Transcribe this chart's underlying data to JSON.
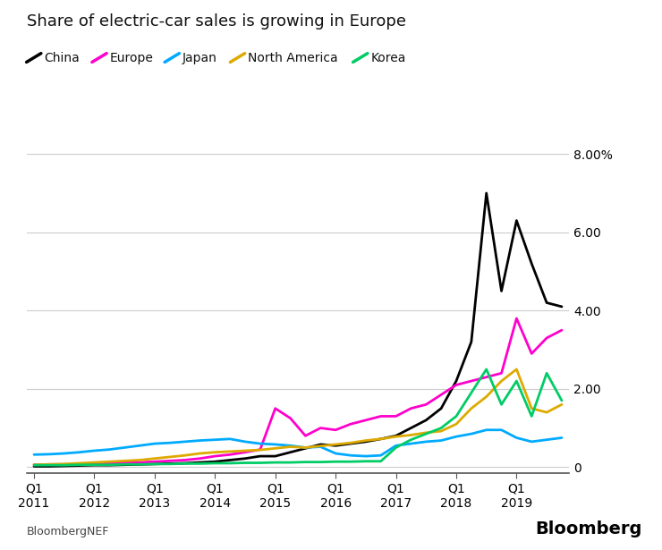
{
  "title": "Share of electric-car sales is growing in Europe",
  "ylim": [
    -0.15,
    8.0
  ],
  "yticks": [
    0,
    2.0,
    4.0,
    6.0,
    8.0
  ],
  "ytick_labels": [
    "0",
    "2.00",
    "4.00",
    "6.00",
    "8.00%"
  ],
  "background_color": "#ffffff",
  "series": {
    "China": {
      "color": "#000000",
      "linewidth": 2.0,
      "data": [
        0.02,
        0.02,
        0.03,
        0.04,
        0.05,
        0.05,
        0.06,
        0.07,
        0.08,
        0.09,
        0.1,
        0.12,
        0.14,
        0.18,
        0.22,
        0.28,
        0.28,
        0.38,
        0.48,
        0.58,
        0.55,
        0.6,
        0.65,
        0.72,
        0.8,
        1.0,
        1.2,
        1.5,
        2.2,
        3.2,
        7.0,
        4.5,
        6.3,
        5.2,
        4.2,
        4.1
      ]
    },
    "Europe": {
      "color": "#ff00cc",
      "linewidth": 2.0,
      "data": [
        0.06,
        0.07,
        0.07,
        0.08,
        0.09,
        0.1,
        0.11,
        0.12,
        0.14,
        0.16,
        0.18,
        0.22,
        0.28,
        0.32,
        0.38,
        0.45,
        1.5,
        1.25,
        0.8,
        1.0,
        0.95,
        1.1,
        1.2,
        1.3,
        1.3,
        1.5,
        1.6,
        1.85,
        2.1,
        2.2,
        2.3,
        2.4,
        3.8,
        2.9,
        3.3,
        3.5
      ]
    },
    "Japan": {
      "color": "#00aaff",
      "linewidth": 2.0,
      "data": [
        0.32,
        0.33,
        0.35,
        0.38,
        0.42,
        0.45,
        0.5,
        0.55,
        0.6,
        0.62,
        0.65,
        0.68,
        0.7,
        0.72,
        0.65,
        0.6,
        0.58,
        0.55,
        0.5,
        0.52,
        0.35,
        0.3,
        0.28,
        0.3,
        0.55,
        0.6,
        0.65,
        0.68,
        0.78,
        0.85,
        0.95,
        0.95,
        0.75,
        0.65,
        0.7,
        0.75
      ]
    },
    "North America": {
      "color": "#ddaa00",
      "linewidth": 2.0,
      "data": [
        0.06,
        0.07,
        0.08,
        0.1,
        0.12,
        0.14,
        0.16,
        0.18,
        0.22,
        0.26,
        0.3,
        0.35,
        0.38,
        0.4,
        0.42,
        0.44,
        0.48,
        0.52,
        0.5,
        0.54,
        0.58,
        0.62,
        0.68,
        0.72,
        0.78,
        0.82,
        0.88,
        0.92,
        1.1,
        1.5,
        1.8,
        2.2,
        2.5,
        1.5,
        1.4,
        1.6
      ]
    },
    "Korea": {
      "color": "#00cc66",
      "linewidth": 2.0,
      "data": [
        0.05,
        0.05,
        0.05,
        0.06,
        0.06,
        0.06,
        0.07,
        0.07,
        0.08,
        0.08,
        0.09,
        0.09,
        0.1,
        0.1,
        0.11,
        0.11,
        0.12,
        0.12,
        0.13,
        0.13,
        0.14,
        0.14,
        0.15,
        0.15,
        0.5,
        0.7,
        0.85,
        1.0,
        1.3,
        1.9,
        2.5,
        1.6,
        2.2,
        1.3,
        2.4,
        1.7
      ]
    }
  },
  "legend_order": [
    "China",
    "Europe",
    "Japan",
    "North America",
    "Korea"
  ],
  "legend_colors": [
    "#000000",
    "#ff00cc",
    "#00aaff",
    "#ddaa00",
    "#00cc66"
  ],
  "years": [
    2011,
    2012,
    2013,
    2014,
    2015,
    2016,
    2017,
    2018,
    2019
  ],
  "footer_left": "BloombergNEF",
  "footer_right": "Bloomberg"
}
